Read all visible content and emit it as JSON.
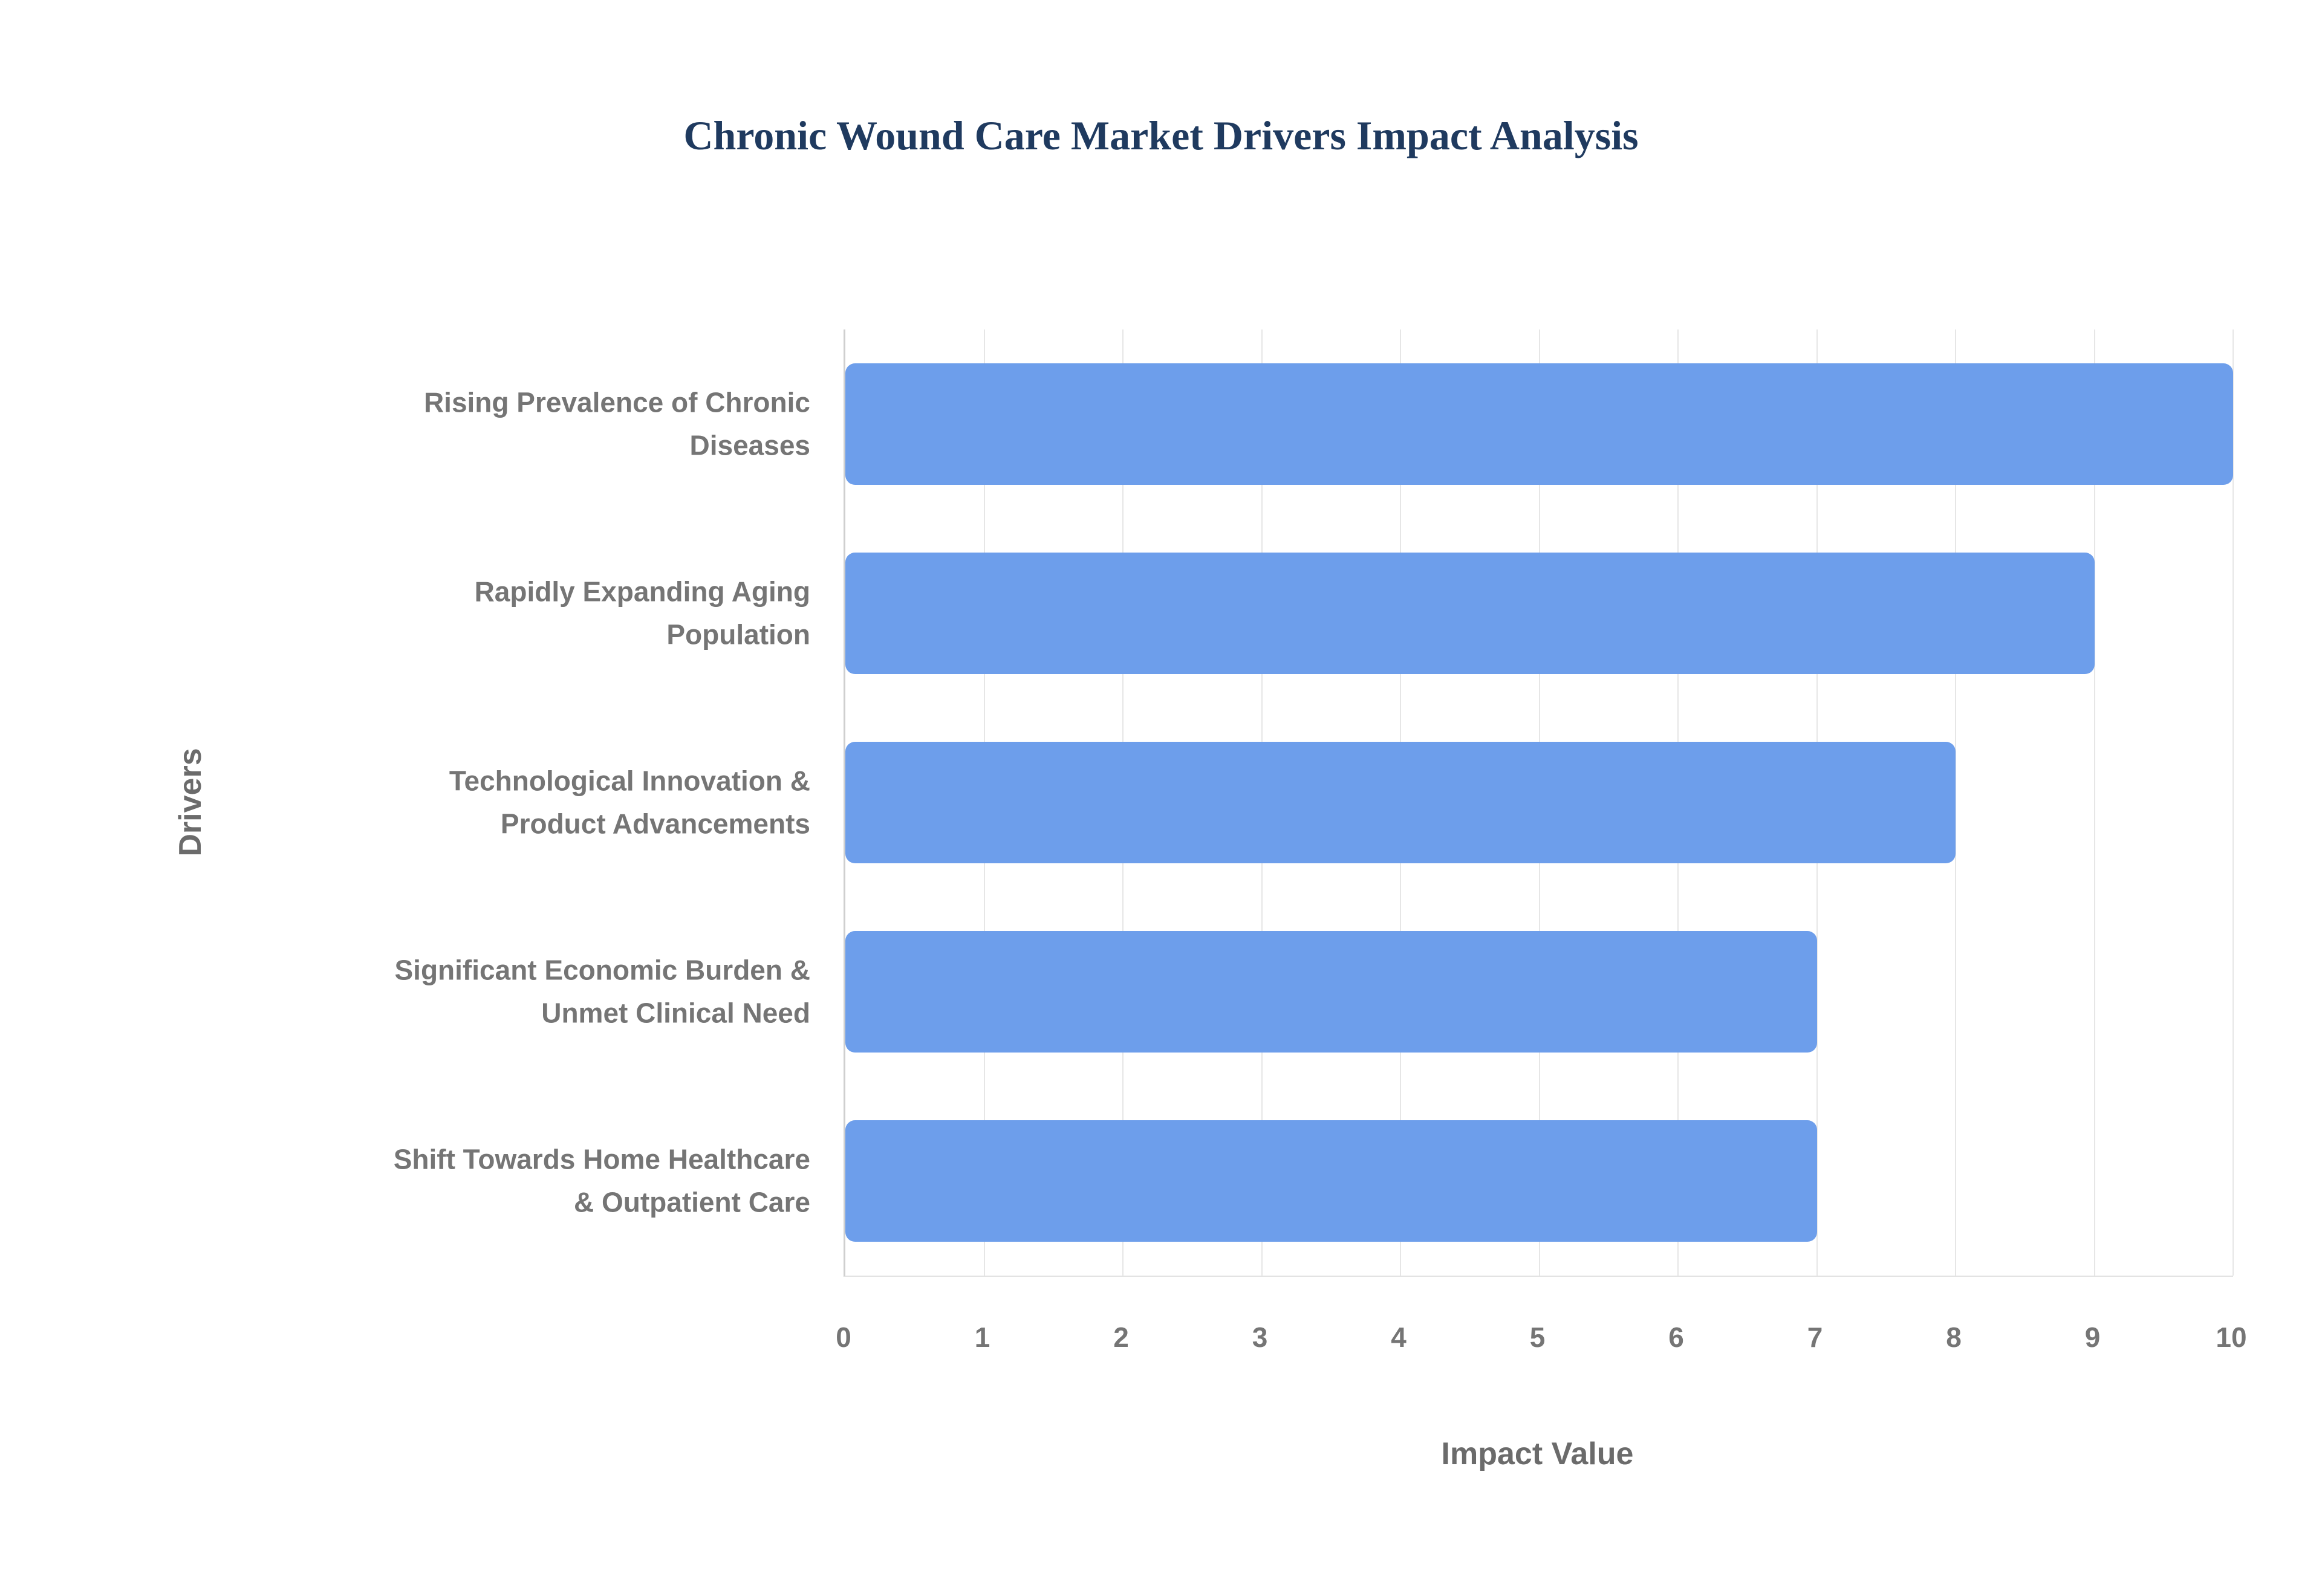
{
  "chart_data": {
    "type": "bar",
    "orientation": "horizontal",
    "title": "Chronic Wound Care Market Drivers Impact Analysis",
    "xlabel": "Impact Value",
    "ylabel": "Drivers",
    "categories": [
      "Rising Prevalence of Chronic\nDiseases",
      "Rapidly Expanding Aging\nPopulation",
      "Technological Innovation &\nProduct Advancements",
      "Significant Economic Burden &\nUnmet Clinical Need",
      "Shift Towards Home Healthcare\n& Outpatient Care"
    ],
    "values": [
      10,
      9,
      8,
      7,
      7
    ],
    "xlim": [
      0,
      10
    ],
    "xticks": [
      0,
      1,
      2,
      3,
      4,
      5,
      6,
      7,
      8,
      9,
      10
    ],
    "grid": "vertical",
    "legend": "none",
    "bar_color": "#6D9EEB",
    "title_color": "#1f3a5f",
    "axis_label_color": "#6b6b6b",
    "tick_label_color": "#757575"
  }
}
